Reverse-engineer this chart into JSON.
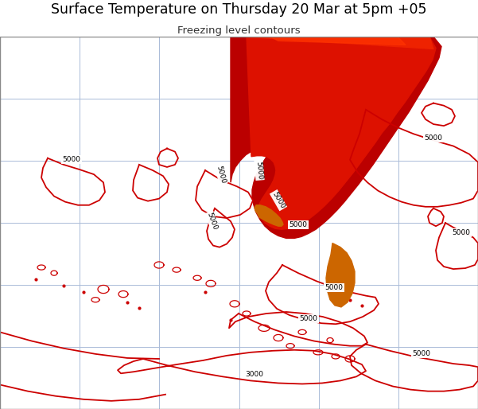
{
  "title": "Surface Temperature on Thursday 20 Mar at 5pm +05",
  "subtitle": "Freezing level contours",
  "title_fontsize": 12.5,
  "subtitle_fontsize": 9.5,
  "map_bg": "#ccd9f5",
  "grid_color": "#aabbd8",
  "contour_color": "#cc0000",
  "contour_lw": 1.3,
  "label_fontsize": 6.5,
  "fig_bg": "#ffffff",
  "border_color": "#888888",
  "india_colors": {
    "base": "#cc0000",
    "mid": "#dd3300",
    "light": "#ff4400",
    "orange": "#cc6600",
    "bright": "#ff2200"
  }
}
